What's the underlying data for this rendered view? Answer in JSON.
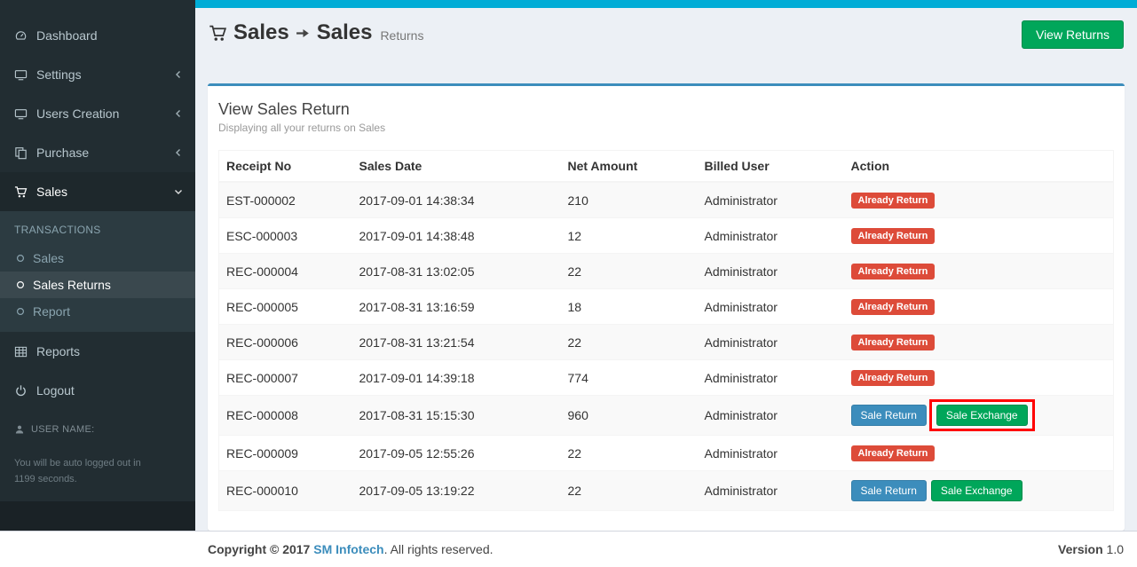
{
  "colors": {
    "top_strip": "#00acd6",
    "sidebar_bg": "#222d32",
    "card_top_border": "#3c8dbc",
    "primary_button": "#3c8dbc",
    "success_button": "#00a65a",
    "danger_badge": "#dd4b39",
    "annotation_box": "#ff0000"
  },
  "sidebar": {
    "items": [
      {
        "label": "Dashboard"
      },
      {
        "label": "Settings"
      },
      {
        "label": "Users Creation"
      },
      {
        "label": "Purchase"
      },
      {
        "label": "Sales"
      }
    ],
    "transactions_header": "TRANSACTIONS",
    "submenu": [
      {
        "label": "Sales"
      },
      {
        "label": "Sales Returns"
      },
      {
        "label": "Report"
      }
    ],
    "secondary_items": [
      {
        "label": "Reports"
      },
      {
        "label": "Logout"
      }
    ],
    "user_label": "USER NAME:",
    "auto_logout_notice": "You will be auto logged out in 1199 seconds."
  },
  "header": {
    "breadcrumb_primary": "Sales",
    "breadcrumb_secondary": "Sales",
    "breadcrumb_small": "Returns",
    "view_returns_button": "View Returns"
  },
  "card": {
    "title": "View Sales Return",
    "subtitle": "Displaying all your returns on Sales",
    "table": {
      "columns": [
        "Receipt No",
        "Sales Date",
        "Net Amount",
        "Billed User",
        "Action"
      ],
      "rows": [
        {
          "receipt_no": "EST-000002",
          "sales_date": "2017-09-01 14:38:34",
          "net_amount": "210",
          "billed_user": "Administrator",
          "actions": [
            {
              "label": "Already Return",
              "type": "already-return"
            }
          ]
        },
        {
          "receipt_no": "ESC-000003",
          "sales_date": "2017-09-01 14:38:48",
          "net_amount": "12",
          "billed_user": "Administrator",
          "actions": [
            {
              "label": "Already Return",
              "type": "already-return"
            }
          ]
        },
        {
          "receipt_no": "REC-000004",
          "sales_date": "2017-08-31 13:02:05",
          "net_amount": "22",
          "billed_user": "Administrator",
          "actions": [
            {
              "label": "Already Return",
              "type": "already-return"
            }
          ]
        },
        {
          "receipt_no": "REC-000005",
          "sales_date": "2017-08-31 13:16:59",
          "net_amount": "18",
          "billed_user": "Administrator",
          "actions": [
            {
              "label": "Already Return",
              "type": "already-return"
            }
          ]
        },
        {
          "receipt_no": "REC-000006",
          "sales_date": "2017-08-31 13:21:54",
          "net_amount": "22",
          "billed_user": "Administrator",
          "actions": [
            {
              "label": "Already Return",
              "type": "already-return"
            }
          ]
        },
        {
          "receipt_no": "REC-000007",
          "sales_date": "2017-09-01 14:39:18",
          "net_amount": "774",
          "billed_user": "Administrator",
          "actions": [
            {
              "label": "Already Return",
              "type": "already-return"
            }
          ]
        },
        {
          "receipt_no": "REC-000008",
          "sales_date": "2017-08-31 15:15:30",
          "net_amount": "960",
          "billed_user": "Administrator",
          "actions": [
            {
              "label": "Sale Return",
              "type": "sale-return"
            },
            {
              "label": "Sale Exchange",
              "type": "sale-exchange",
              "highlighted": true
            }
          ]
        },
        {
          "receipt_no": "REC-000009",
          "sales_date": "2017-09-05 12:55:26",
          "net_amount": "22",
          "billed_user": "Administrator",
          "actions": [
            {
              "label": "Already Return",
              "type": "already-return"
            }
          ]
        },
        {
          "receipt_no": "REC-000010",
          "sales_date": "2017-09-05 13:19:22",
          "net_amount": "22",
          "billed_user": "Administrator",
          "actions": [
            {
              "label": "Sale Return",
              "type": "sale-return"
            },
            {
              "label": "Sale Exchange",
              "type": "sale-exchange"
            }
          ]
        }
      ]
    }
  },
  "footer": {
    "copyright": "Copyright © 2017",
    "company": "SM Infotech",
    "rights": ". All rights reserved.",
    "version_label": "Version",
    "version_value": "1.0"
  }
}
